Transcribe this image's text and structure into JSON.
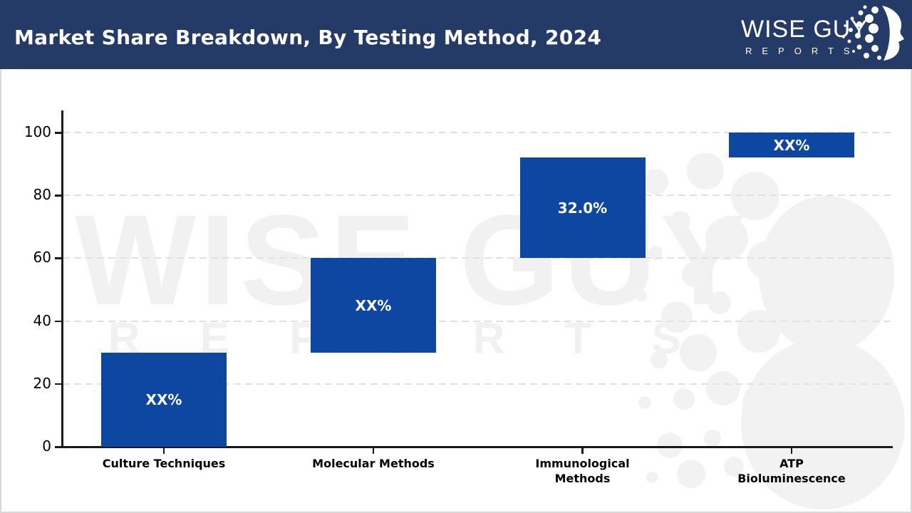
{
  "header": {
    "title": "Market Share Breakdown, By Testing Method, 2024",
    "logo": {
      "wordmark": "WISE GUY",
      "tagline": "REPORTS"
    }
  },
  "watermark": {
    "wordmark": "WISE GUY",
    "tagline": "REPORTS"
  },
  "chart_data": {
    "type": "bar",
    "variant": "waterfall",
    "title": "Market Share Breakdown, By Testing Method, 2024",
    "categories": [
      "Culture Techniques",
      "Molecular Methods",
      "Immunological Methods",
      "ATP Bioluminescence"
    ],
    "category_lines": [
      [
        "Culture Techniques"
      ],
      [
        "Molecular Methods"
      ],
      [
        "Immunological",
        "Methods"
      ],
      [
        "ATP",
        "Bioluminescence"
      ]
    ],
    "values": [
      30,
      30,
      32,
      8
    ],
    "segments": [
      [
        0,
        30
      ],
      [
        30,
        60
      ],
      [
        60,
        92
      ],
      [
        92,
        100
      ]
    ],
    "bar_labels": [
      "XX%",
      "XX%",
      "32.0%",
      "XX%"
    ],
    "ylim": [
      0,
      100
    ],
    "yticks": [
      0,
      20,
      40,
      60,
      80,
      100
    ],
    "grid": "horizontal-dashed",
    "legend": "none",
    "bar_color": "#0d47a1",
    "bar_label_color": "#ffffff"
  },
  "colors": {
    "header_bg": "#243a67",
    "bar": "#0d47a1",
    "grid": "#e1e1e1",
    "axis": "#1a1a1a",
    "text": "#000000",
    "watermark": "#f1f1f1",
    "page_border": "#d9d9d9"
  }
}
